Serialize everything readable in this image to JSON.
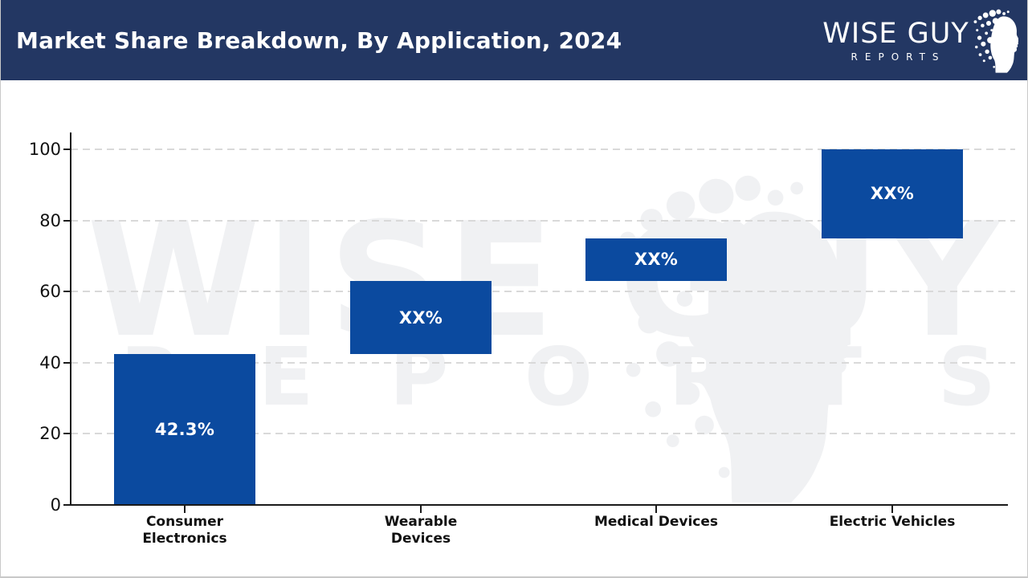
{
  "header": {
    "title": "Market Share Breakdown, By Application, 2024"
  },
  "logo": {
    "line1": "WISE GUY",
    "line2": "REPORTS"
  },
  "watermark": {
    "line1": "WISE GUY",
    "line2": "R E P O R T S"
  },
  "colors": {
    "header_bg": "#233763",
    "bar": "#0b4a9f",
    "bar_label_text": "#ffffff",
    "axis": "#1a1a1a",
    "grid": "#d9d9d9",
    "watermark": "#f0f1f3",
    "frame_border": "#c9c9c9",
    "title_text": "#ffffff"
  },
  "chart_data": {
    "type": "bar",
    "subtype": "waterfall",
    "title": "Market Share Breakdown, By Application, 2024",
    "categories": [
      "Consumer Electronics",
      "Wearable Devices",
      "Medical Devices",
      "Electric Vehicles"
    ],
    "segments": [
      {
        "category": "Consumer Electronics",
        "start": 0,
        "end": 42.3,
        "label": "42.3%"
      },
      {
        "category": "Wearable Devices",
        "start": 42.3,
        "end": 63,
        "label": "XX%"
      },
      {
        "category": "Medical Devices",
        "start": 63,
        "end": 75,
        "label": "XX%"
      },
      {
        "category": "Electric Vehicles",
        "start": 75,
        "end": 100,
        "label": "XX%"
      }
    ],
    "yticks": [
      0,
      20,
      40,
      60,
      80,
      100
    ],
    "ylim": [
      0,
      100
    ],
    "xlabel": "",
    "ylabel": "",
    "grid": "horizontal-dashed",
    "legend": null
  }
}
